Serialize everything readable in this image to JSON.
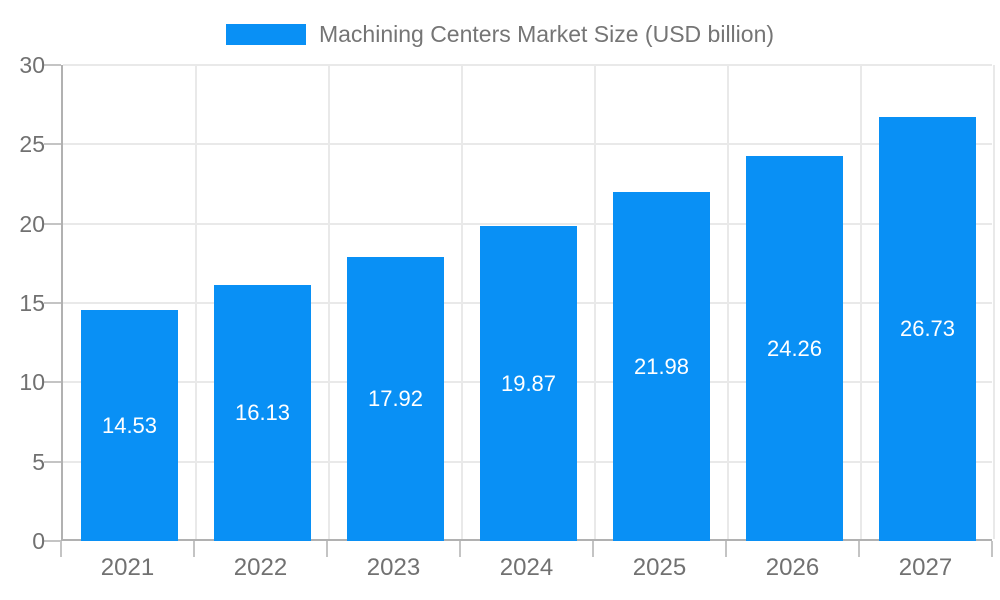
{
  "chart_data": {
    "type": "bar",
    "title": "Machining Centers Market Size (USD billion)",
    "categories": [
      "2021",
      "2022",
      "2023",
      "2024",
      "2025",
      "2026",
      "2027"
    ],
    "values": [
      14.53,
      16.13,
      17.92,
      19.87,
      21.98,
      24.26,
      26.73
    ],
    "xlabel": "",
    "ylabel": "",
    "ylim": [
      0,
      30
    ],
    "yticks": [
      0,
      5,
      10,
      15,
      20,
      25,
      30
    ],
    "grid": true,
    "legend_position": "top",
    "value_labels_inside_bars": true
  },
  "colors": {
    "bar": "#0990F5",
    "value_text": "#FFFFFF",
    "axis_line": "#B1B1B1",
    "gridline": "#E9E9E9",
    "tick_mark": "#C4C4C4",
    "tick_text": "#717171",
    "legend_text": "#757575",
    "background": "#FFFFFF"
  }
}
